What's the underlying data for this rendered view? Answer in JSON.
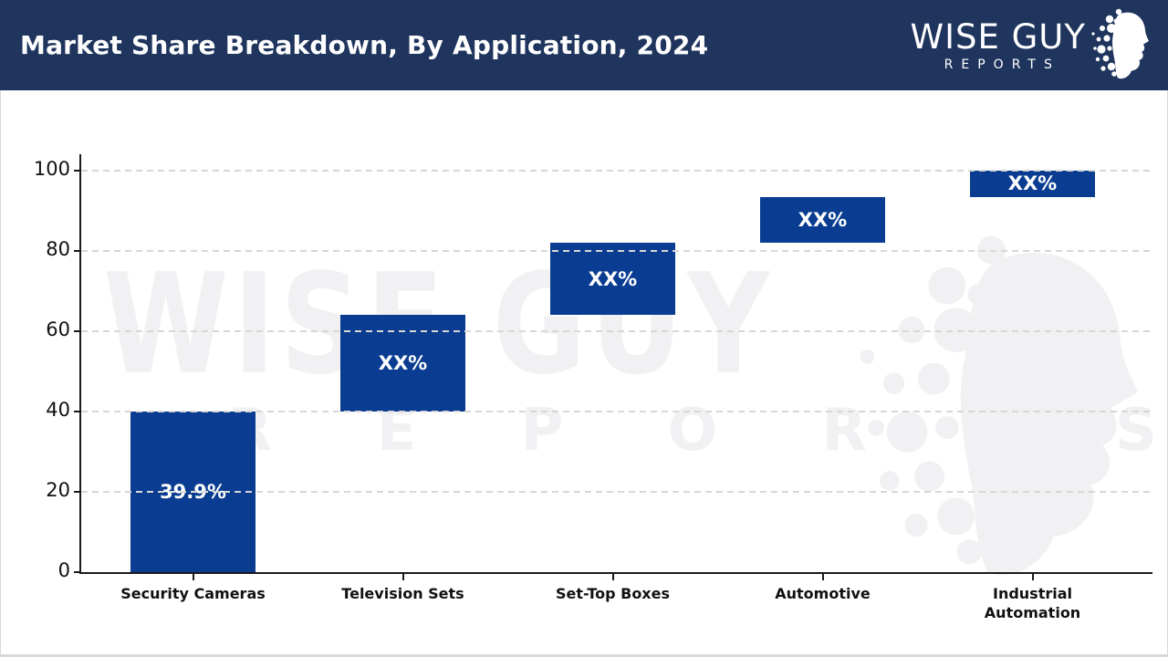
{
  "header": {
    "title": "Market Share Breakdown, By Application, 2024",
    "logo": {
      "line1": "WISE GUY",
      "line2": "REPORTS"
    }
  },
  "watermark": {
    "line1": "WISE GUY",
    "line2": "R E P O R T S"
  },
  "colors": {
    "header_bg": "#20355e",
    "bar": "#0a3d91",
    "grid": "#d7d7d7",
    "axis": "#1a1a1a",
    "bar_label": "#ffffff",
    "watermark": "#f1f1f3"
  },
  "chart_data": {
    "type": "bar",
    "subtype": "waterfall",
    "title": "Market Share Breakdown, By Application, 2024",
    "xlabel": "",
    "ylabel": "",
    "ylim": [
      0,
      105
    ],
    "y_ticks": [
      0,
      20,
      40,
      60,
      80,
      100
    ],
    "grid": "horizontal-dashed",
    "legend": "none",
    "categories": [
      "Security Cameras",
      "Television Sets",
      "Set-Top Boxes",
      "Automotive",
      "Industrial Automation"
    ],
    "segments": [
      {
        "category": "Security Cameras",
        "start": 0,
        "end": 39.9,
        "label": "39.9%",
        "wrap": false
      },
      {
        "category": "Television Sets",
        "start": 40,
        "end": 64,
        "label": "XX%",
        "wrap": false
      },
      {
        "category": "Set-Top Boxes",
        "start": 64,
        "end": 82,
        "label": "XX%",
        "wrap": false
      },
      {
        "category": "Automotive",
        "start": 82,
        "end": 93.5,
        "label": "XX%",
        "wrap": false
      },
      {
        "category": "Industrial Automation",
        "start": 93.5,
        "end": 100,
        "label": "XX%",
        "wrap": true
      }
    ]
  }
}
